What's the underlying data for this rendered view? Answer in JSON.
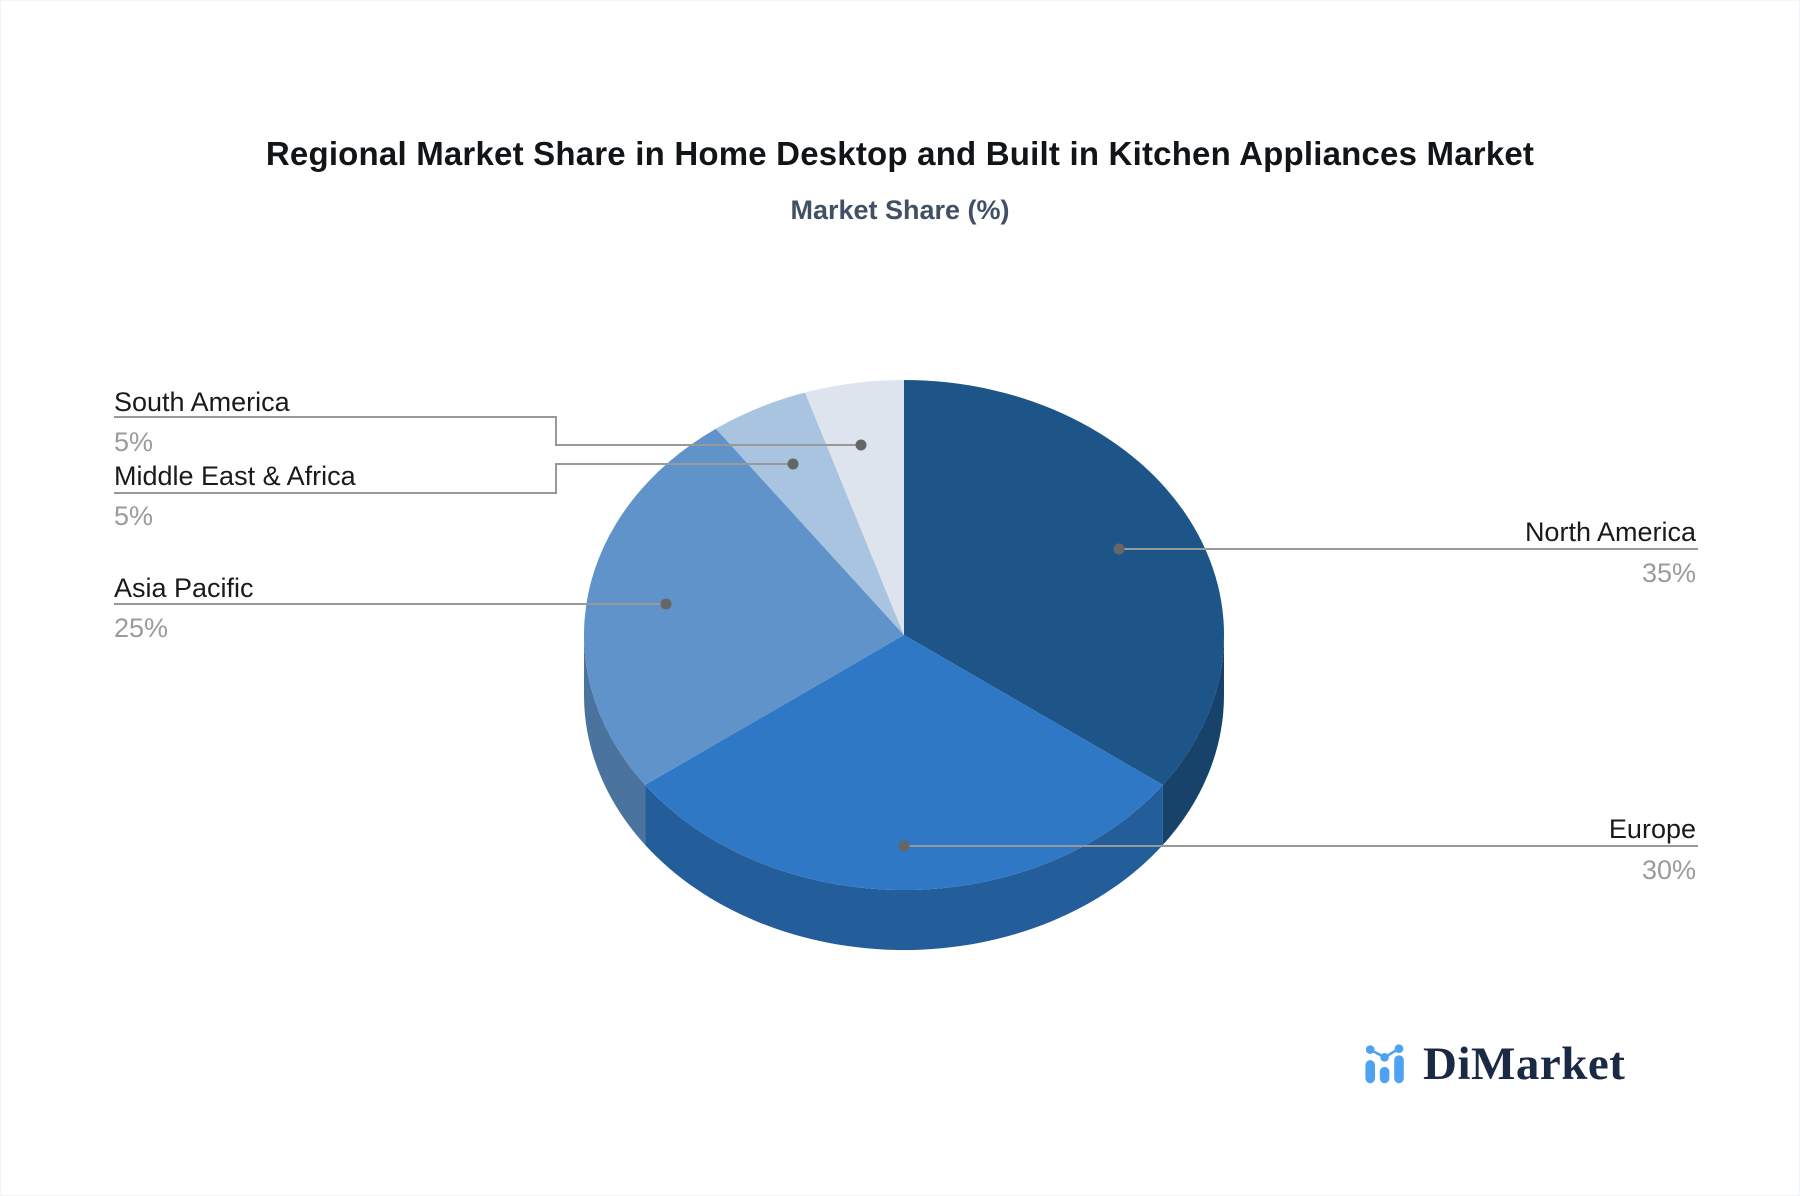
{
  "chart_data": {
    "type": "pie",
    "title": "Regional Market Share in Home Desktop and Built in Kitchen Appliances Market",
    "subtitle": "Market Share (%)",
    "unit": "%",
    "start_angle": "12-o-clock",
    "direction": "clockwise",
    "effect": "3d-depth",
    "slices": [
      {
        "label": "North America",
        "value": 35,
        "display": "35%",
        "color": "#1d5588"
      },
      {
        "label": "Europe",
        "value": 30,
        "display": "30%",
        "color": "#2e78c6"
      },
      {
        "label": "Asia Pacific",
        "value": 25,
        "display": "25%",
        "color": "#5f93c9"
      },
      {
        "label": "Middle East & Africa",
        "value": 5,
        "display": "5%",
        "color": "#a9c4e1"
      },
      {
        "label": "South America",
        "value": 5,
        "display": "5%",
        "color": "#dde4ee"
      }
    ],
    "legend_position": "none",
    "grid": false
  },
  "connectors": {
    "line_color": "#999999",
    "dot_color": "#666666"
  },
  "logo": {
    "text": "DiMarket",
    "text_color": "#1b2a44",
    "icon": "bar-and-line-chart-icon",
    "icon_color": "#4da3f2"
  }
}
